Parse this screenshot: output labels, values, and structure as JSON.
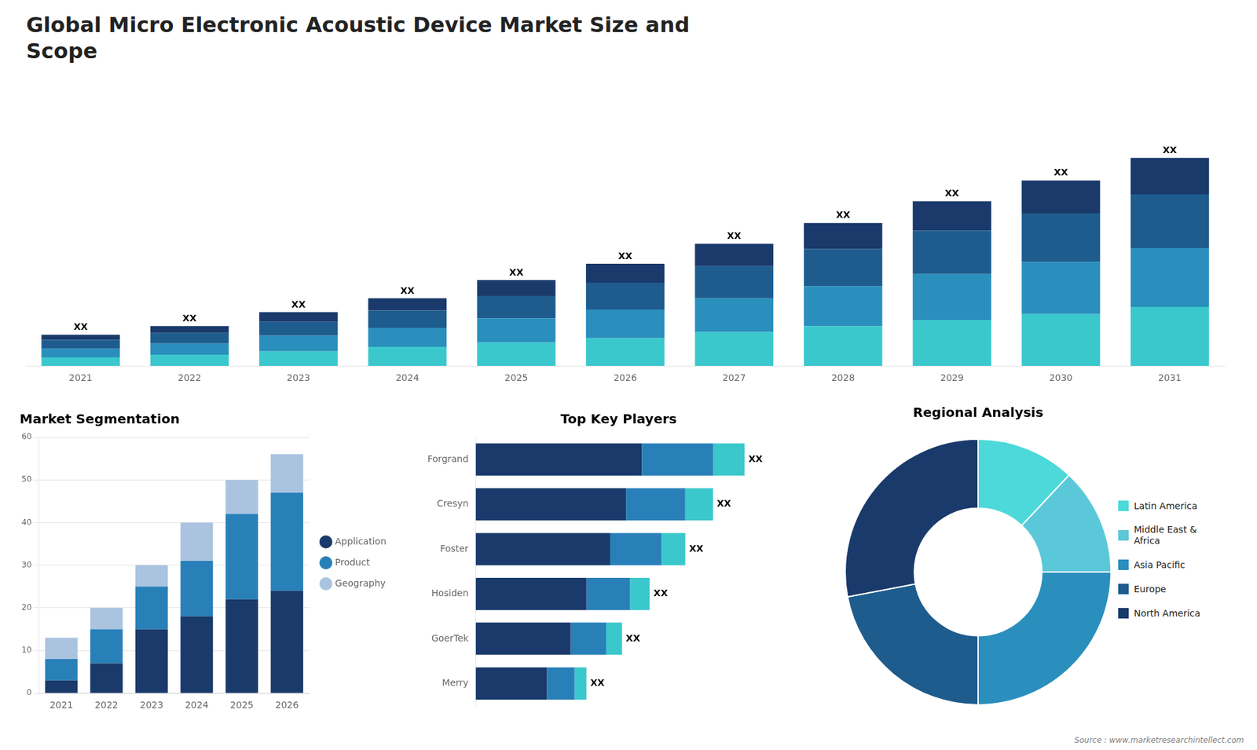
{
  "title": "Global Micro Electronic Acoustic Device Market Size and\nScope",
  "annotations": [
    "Source : www.marketresearchintellect.com"
  ],
  "chart_data": [
    {
      "type": "bar",
      "stacked": true,
      "categories": [
        "2021",
        "2022",
        "2023",
        "2024",
        "2025",
        "2026",
        "2027",
        "2028",
        "2029",
        "2030",
        "2031"
      ],
      "series": [
        {
          "color": "#3bc8cc",
          "values": [
            0.5,
            0.65,
            0.85,
            1.1,
            1.35,
            1.6,
            1.95,
            2.3,
            2.65,
            3.0,
            3.4
          ]
        },
        {
          "color": "#2a8fbd",
          "values": [
            0.5,
            0.65,
            0.9,
            1.1,
            1.4,
            1.65,
            1.95,
            2.3,
            2.65,
            3.0,
            3.4
          ]
        },
        {
          "color": "#1e5c8e",
          "values": [
            0.5,
            0.6,
            0.8,
            1.0,
            1.3,
            1.55,
            1.85,
            2.15,
            2.5,
            2.8,
            3.1
          ]
        },
        {
          "color": "#1a3a6b",
          "values": [
            0.3,
            0.4,
            0.55,
            0.7,
            0.9,
            1.1,
            1.3,
            1.5,
            1.7,
            1.9,
            2.1
          ]
        }
      ],
      "ylim": [
        0,
        16.2
      ],
      "tick_labels": "x",
      "grid": false,
      "annotations": [
        {
          "category": "2021",
          "text": "XX"
        },
        {
          "category": "2022",
          "text": "XX"
        },
        {
          "category": "2023",
          "text": "XX"
        },
        {
          "category": "2024",
          "text": "XX"
        },
        {
          "category": "2025",
          "text": "XX"
        },
        {
          "category": "2026",
          "text": "XX"
        },
        {
          "category": "2027",
          "text": "XX"
        },
        {
          "category": "2028",
          "text": "XX"
        },
        {
          "category": "2029",
          "text": "XX"
        },
        {
          "category": "2030",
          "text": "XX"
        },
        {
          "category": "2031",
          "text": "XX"
        }
      ]
    },
    {
      "type": "bar",
      "stacked": true,
      "title": "Market Segmentation",
      "categories": [
        "2021",
        "2022",
        "2023",
        "2024",
        "2025",
        "2026"
      ],
      "series": [
        {
          "name": "Application",
          "color": "#1a3a6b",
          "values": [
            3,
            7,
            15,
            18,
            22,
            24
          ]
        },
        {
          "name": "Product",
          "color": "#2980b9",
          "values": [
            5,
            8,
            10,
            13,
            20,
            23
          ]
        },
        {
          "name": "Geography",
          "color": "#aac4e0",
          "values": [
            5,
            5,
            5,
            9,
            8,
            9
          ]
        }
      ],
      "ylim": [
        0,
        60
      ],
      "yticks": [
        0,
        10,
        20,
        30,
        40,
        50,
        60
      ],
      "grid": true,
      "legend": "right"
    },
    {
      "type": "bar",
      "orientation": "horizontal",
      "stacked": true,
      "title": "Top Key Players",
      "categories": [
        "Forgrand",
        "Cresyn",
        "Foster",
        "Hosiden",
        "GoerTek",
        "Merry"
      ],
      "series": [
        {
          "color": "#1a3a6b",
          "values": [
            0.42,
            0.38,
            0.34,
            0.28,
            0.24,
            0.18
          ]
        },
        {
          "color": "#2980b9",
          "values": [
            0.18,
            0.15,
            0.13,
            0.11,
            0.09,
            0.07
          ]
        },
        {
          "color": "#3bc8cc",
          "values": [
            0.08,
            0.07,
            0.06,
            0.05,
            0.04,
            0.03
          ]
        }
      ],
      "xlim": [
        0,
        0.85
      ],
      "tick_labels": "y",
      "grid": false,
      "annotations": [
        {
          "category": "Forgrand",
          "text": "XX"
        },
        {
          "category": "Cresyn",
          "text": "XX"
        },
        {
          "category": "Foster",
          "text": "XX"
        },
        {
          "category": "Hosiden",
          "text": "XX"
        },
        {
          "category": "GoerTek",
          "text": "XX"
        },
        {
          "category": "Merry",
          "text": "XX"
        }
      ]
    },
    {
      "type": "doughnut",
      "title": "Regional Analysis",
      "categories": [
        "Latin America",
        "Middle East &\nAfrica",
        "Asia Pacific",
        "Europe",
        "North America"
      ],
      "values": [
        12,
        13,
        25,
        22,
        28
      ],
      "colors": [
        "#4dd9d9",
        "#5bc8d9",
        "#2a8fbd",
        "#1e5c8e",
        "#1a3a6b"
      ],
      "legend": "right"
    }
  ]
}
